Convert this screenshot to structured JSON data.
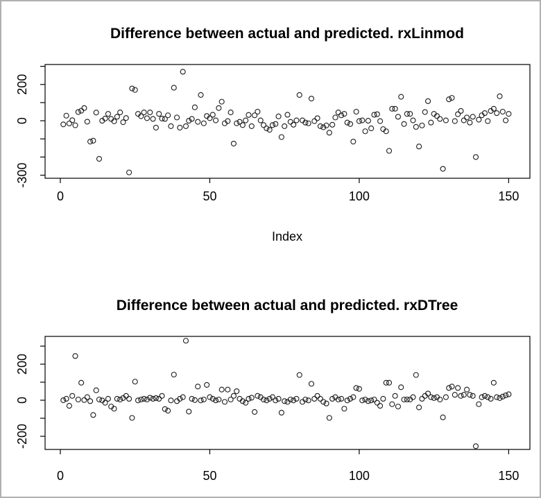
{
  "window": {
    "background": "#ffffff",
    "border_color": "#b0b0b0",
    "marker_color": "#1a1a1a",
    "axis_color": "#000000"
  },
  "chart_data": [
    {
      "type": "scatter",
      "title": "Difference between actual and predicted. rxLinmod",
      "xlabel": "Index",
      "ylabel": "",
      "marker": "open-circle",
      "grid": false,
      "legend": "none",
      "x_ticks": [
        0,
        50,
        100,
        150
      ],
      "y_ticks": [
        300,
        200,
        100,
        0,
        -100,
        -200,
        -300
      ],
      "y_tick_labels_shown": [
        200,
        0,
        -300
      ],
      "xlim": [
        -5.1,
        157.1
      ],
      "ylim": [
        -317,
        310
      ],
      "x_start": 1,
      "values": [
        -20,
        28,
        -15,
        3,
        -25,
        48,
        55,
        70,
        -5,
        -115,
        -110,
        45,
        -210,
        0,
        12,
        38,
        10,
        -3,
        22,
        46,
        -8,
        15,
        -285,
        178,
        170,
        38,
        25,
        46,
        14,
        46,
        10,
        -38,
        38,
        12,
        10,
        30,
        -30,
        182,
        18,
        -38,
        270,
        -30,
        0,
        10,
        74,
        -6,
        142,
        -14,
        26,
        14,
        33,
        2,
        70,
        105,
        -14,
        -2,
        46,
        -126,
        -14,
        -6,
        -24,
        2,
        32,
        -30,
        30,
        50,
        2,
        -24,
        -42,
        -50,
        -24,
        -18,
        24,
        -90,
        -30,
        33,
        -6,
        -22,
        2,
        142,
        2,
        -10,
        -14,
        122,
        -2,
        14,
        -30,
        -36,
        -26,
        -66,
        -22,
        18,
        46,
        30,
        38,
        -10,
        -18,
        -115,
        50,
        -2,
        2,
        -58,
        0,
        -42,
        33,
        36,
        -2,
        -46,
        -58,
        -166,
        66,
        66,
        22,
        132,
        -18,
        38,
        38,
        2,
        -34,
        -142,
        -26,
        48,
        108,
        -10,
        38,
        26,
        10,
        -265,
        2,
        118,
        126,
        -2,
        36,
        54,
        2,
        18,
        -10,
        22,
        -200,
        6,
        30,
        42,
        -2,
        54,
        66,
        42,
        135,
        50,
        2,
        38
      ]
    },
    {
      "type": "scatter",
      "title": "Difference between actual and predicted. rxDTree",
      "xlabel": "",
      "ylabel": "",
      "marker": "open-circle",
      "grid": false,
      "legend": "none",
      "x_ticks": [
        0,
        50,
        100,
        150
      ],
      "y_ticks": [
        300,
        200,
        100,
        0,
        -100,
        -200
      ],
      "y_tick_labels_shown": [
        200,
        0,
        -200
      ],
      "xlim": [
        -5.1,
        157.1
      ],
      "ylim": [
        -273,
        354
      ],
      "x_start": 1,
      "values": [
        0,
        8,
        -31,
        24,
        245,
        4,
        97,
        1,
        17,
        -5,
        -82,
        55,
        4,
        -1,
        -14,
        8,
        -35,
        -47,
        8,
        4,
        12,
        24,
        8,
        -98,
        103,
        -1,
        4,
        8,
        4,
        14,
        8,
        12,
        8,
        24,
        -49,
        -58,
        -1,
        142,
        -5,
        8,
        17,
        330,
        -63,
        8,
        1,
        76,
        -1,
        4,
        85,
        17,
        8,
        -1,
        4,
        59,
        -9,
        59,
        4,
        24,
        50,
        8,
        -5,
        -14,
        8,
        14,
        -65,
        24,
        17,
        4,
        -1,
        8,
        17,
        -1,
        8,
        -69,
        -5,
        -9,
        4,
        -1,
        8,
        140,
        -9,
        4,
        -1,
        91,
        8,
        24,
        8,
        -9,
        -18,
        -98,
        8,
        17,
        4,
        8,
        -47,
        -1,
        8,
        17,
        68,
        63,
        -1,
        4,
        -5,
        -1,
        4,
        -14,
        -31,
        8,
        97,
        97,
        -22,
        24,
        -35,
        72,
        4,
        4,
        4,
        17,
        140,
        -40,
        8,
        24,
        37,
        17,
        12,
        17,
        4,
        -95,
        17,
        68,
        76,
        30,
        68,
        24,
        30,
        59,
        30,
        24,
        -255,
        -22,
        17,
        24,
        17,
        8,
        97,
        17,
        12,
        20,
        27,
        33
      ]
    }
  ]
}
